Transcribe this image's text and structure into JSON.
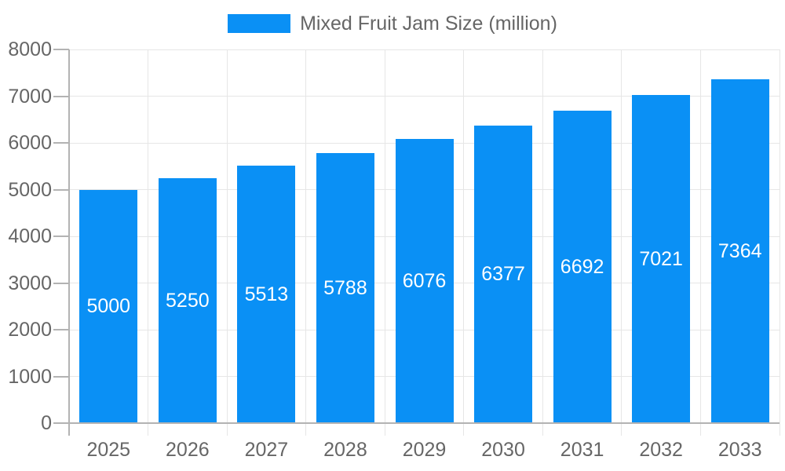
{
  "legend": {
    "label": "Mixed Fruit Jam Size (million)"
  },
  "colors": {
    "bar": "#0a90f5",
    "text": "#666666",
    "grid": "#e6e6e6",
    "axis": "#b3b3b3",
    "data_label": "#ffffff",
    "background": "#ffffff"
  },
  "chart_data": {
    "type": "bar",
    "title": "Mixed Fruit Jam Size (million)",
    "series_name": "Mixed Fruit Jam Size (million)",
    "categories": [
      "2025",
      "2026",
      "2027",
      "2028",
      "2029",
      "2030",
      "2031",
      "2032",
      "2033"
    ],
    "values": [
      5000,
      5250,
      5513,
      5788,
      6076,
      6377,
      6692,
      7021,
      7364
    ],
    "xlabel": "",
    "ylabel": "",
    "ylim": [
      0,
      8000
    ],
    "ytick_step": 1000,
    "yticks": [
      0,
      1000,
      2000,
      3000,
      4000,
      5000,
      6000,
      7000,
      8000
    ],
    "grid": true,
    "legend_position": "top",
    "data_labels": "inside-center"
  }
}
